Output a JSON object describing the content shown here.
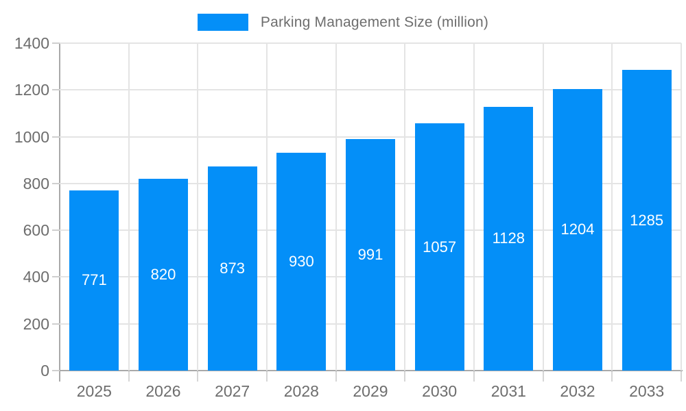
{
  "legend": {
    "label": "Parking Management Size (million)"
  },
  "chart_data": {
    "type": "bar",
    "title": "",
    "xlabel": "",
    "ylabel": "",
    "categories": [
      "2025",
      "2026",
      "2027",
      "2028",
      "2029",
      "2030",
      "2031",
      "2032",
      "2033"
    ],
    "series": [
      {
        "name": "Parking Management Size (million)",
        "values": [
          771,
          820,
          873,
          930,
          991,
          1057,
          1128,
          1204,
          1285
        ]
      }
    ],
    "value_labels_shown": true,
    "ylim": [
      0,
      1400
    ],
    "yticks": [
      0,
      200,
      400,
      600,
      800,
      1000,
      1200,
      1400
    ],
    "grid": true,
    "legend_position": "top-center",
    "colors": {
      "bar": "#048FF8",
      "value_label": "#ffffff",
      "axis_text": "#6d6d6d",
      "legend_text": "#6d6d6d",
      "gridline": "#e4e4e4",
      "axis_line": "#a9a9a9"
    }
  }
}
